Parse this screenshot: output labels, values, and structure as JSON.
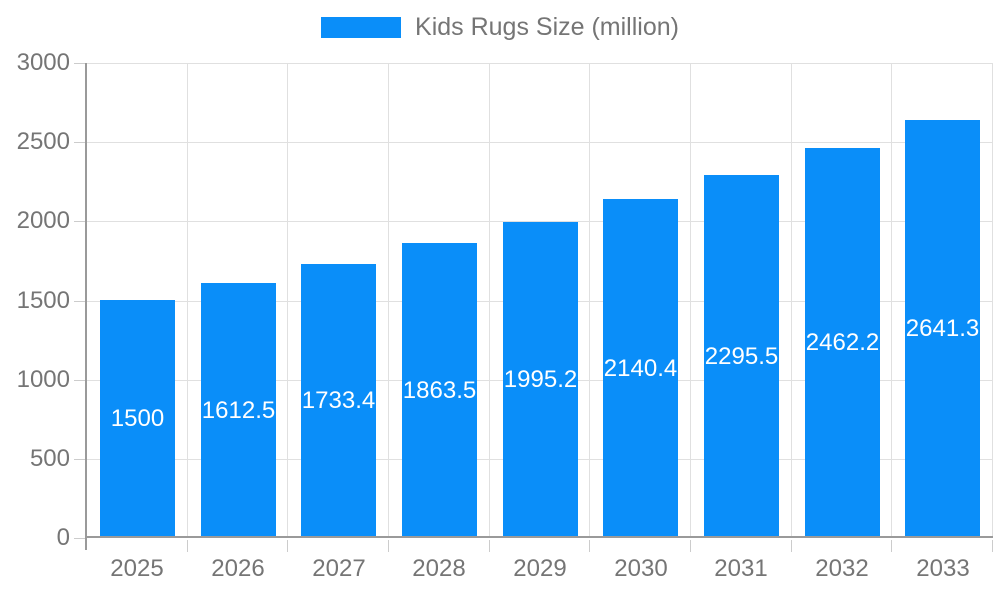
{
  "chart_data": {
    "type": "bar",
    "title": "Kids Rugs Size (million)",
    "categories": [
      "2025",
      "2026",
      "2027",
      "2028",
      "2029",
      "2030",
      "2031",
      "2032",
      "2033"
    ],
    "series": [
      {
        "name": "Kids Rugs Size (million)",
        "values": [
          1500,
          1612.5,
          1733.4,
          1863.5,
          1995.2,
          2140.4,
          2295.5,
          2462.2,
          2641.3
        ]
      }
    ],
    "value_labels": [
      "1500",
      "1612.5",
      "1733.4",
      "1863.5",
      "1995.2",
      "2140.4",
      "2295.5",
      "2462.2",
      "2641.3"
    ],
    "xlabel": "",
    "ylabel": "",
    "ylim": [
      0,
      3000
    ],
    "yticks": [
      0,
      500,
      1000,
      1500,
      2000,
      2500,
      3000
    ],
    "grid": true,
    "legend_position": "top",
    "colors": {
      "bar": "#0a8ef9",
      "grid": "#e0e0e0",
      "axis": "#9a9a9a",
      "tick": "#cccccc",
      "axis_label": "#757575",
      "value_label": "#ffffff",
      "background": "#ffffff"
    }
  }
}
